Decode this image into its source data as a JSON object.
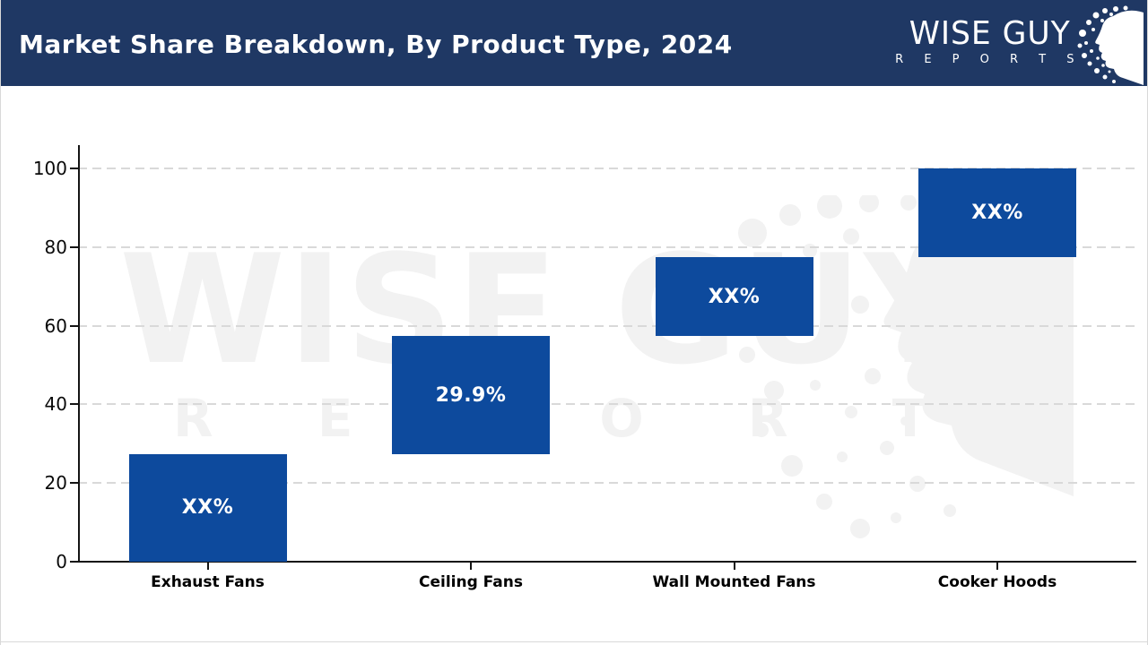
{
  "header": {
    "title": "Market Share Breakdown, By Product Type, 2024",
    "logo": {
      "line1": "WISE GUY",
      "line2": "R E P O R T S"
    }
  },
  "watermark": {
    "line1": "WISE GUY",
    "line2": "R E P O R T S"
  },
  "colors": {
    "header_bg": "#1f3864",
    "bar": "#0d4a9d",
    "grid": "#d9d9d9",
    "axis": "#141414",
    "bar_label_text": "#ffffff",
    "watermark": "#f2f2f2"
  },
  "chart_data": {
    "type": "bar",
    "variant": "waterfall",
    "title": "Market Share Breakdown, By Product Type, 2024",
    "xlabel": "",
    "ylabel": "",
    "categories": [
      "Exhaust Fans",
      "Ceiling Fans",
      "Wall Mounted Fans",
      "Cooker Hoods"
    ],
    "segments": [
      {
        "category": "Exhaust Fans",
        "from": 0,
        "to": 27.4,
        "label": "XX%"
      },
      {
        "category": "Ceiling Fans",
        "from": 27.4,
        "to": 57.3,
        "label": "29.9%"
      },
      {
        "category": "Wall Mounted Fans",
        "from": 57.3,
        "to": 77.5,
        "label": "XX%"
      },
      {
        "category": "Cooker Hoods",
        "from": 77.5,
        "to": 100,
        "label": "XX%"
      }
    ],
    "yticks": [
      0,
      20,
      40,
      60,
      80,
      100
    ],
    "ylim": [
      0,
      105
    ],
    "grid": "horizontal-dashed",
    "legend": "none"
  }
}
